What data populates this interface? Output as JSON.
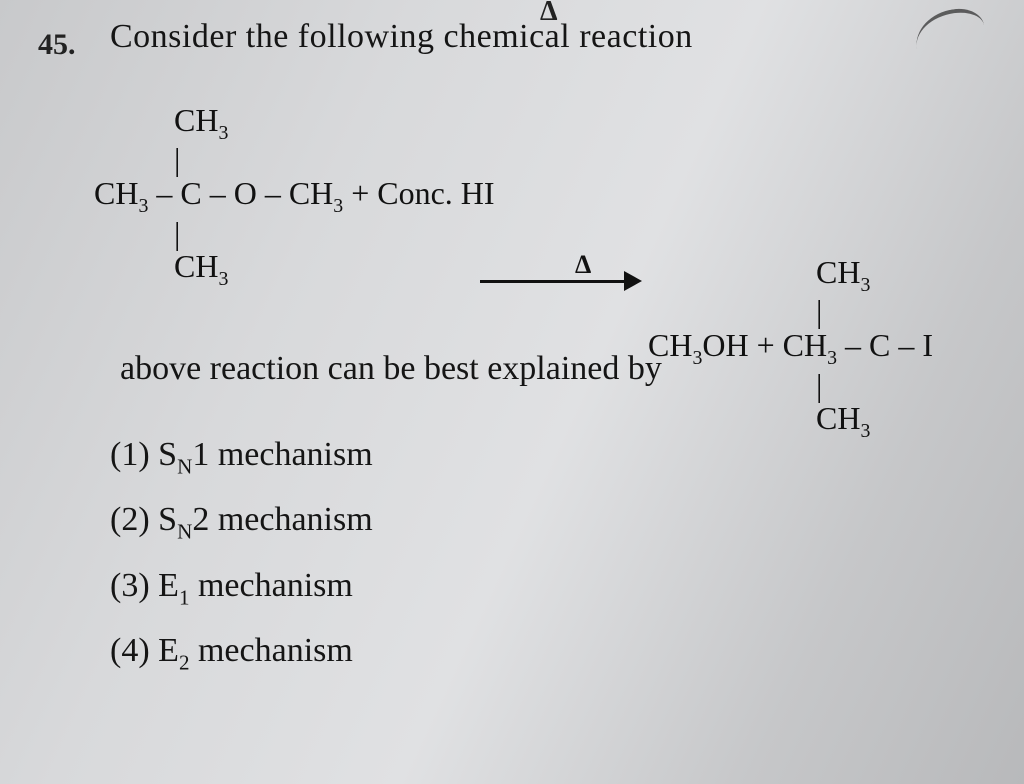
{
  "question_number": "45.",
  "top_delta": "Δ",
  "question_text": "Consider the following chemical reaction",
  "reactant": {
    "top": "          CH",
    "top_sub": "3",
    "top2": "          |",
    "mid_a": "CH",
    "mid_a_sub": "3",
    "mid_b": " – C – O – CH",
    "mid_b_sub": "3",
    "mid_c": " + Conc. HI",
    "bot1": "          |",
    "bot2": "          CH",
    "bot2_sub": "3"
  },
  "arrow_label": "Δ",
  "product": {
    "top": "                     CH",
    "top_sub": "3",
    "top2": "                     |",
    "mid_a": "CH",
    "mid_a_sub": "3",
    "mid_b": "OH + CH",
    "mid_b_sub": "3",
    "mid_c": " – C – I",
    "bot1": "                     |",
    "bot2": "                     CH",
    "bot2_sub": "3"
  },
  "explain_text": "above reaction can be best explained by",
  "options": {
    "o1": {
      "num": "(1) ",
      "pre": "S",
      "sub": "N",
      "post": "1 mechanism"
    },
    "o2": {
      "num": "(2) ",
      "pre": "S",
      "sub": "N",
      "post": "2 mechanism"
    },
    "o3": {
      "num": "(3) ",
      "pre": "E",
      "sub": "1",
      "post": " mechanism"
    },
    "o4": {
      "num": "(4) ",
      "pre": "E",
      "sub": "2",
      "post": " mechanism"
    }
  }
}
